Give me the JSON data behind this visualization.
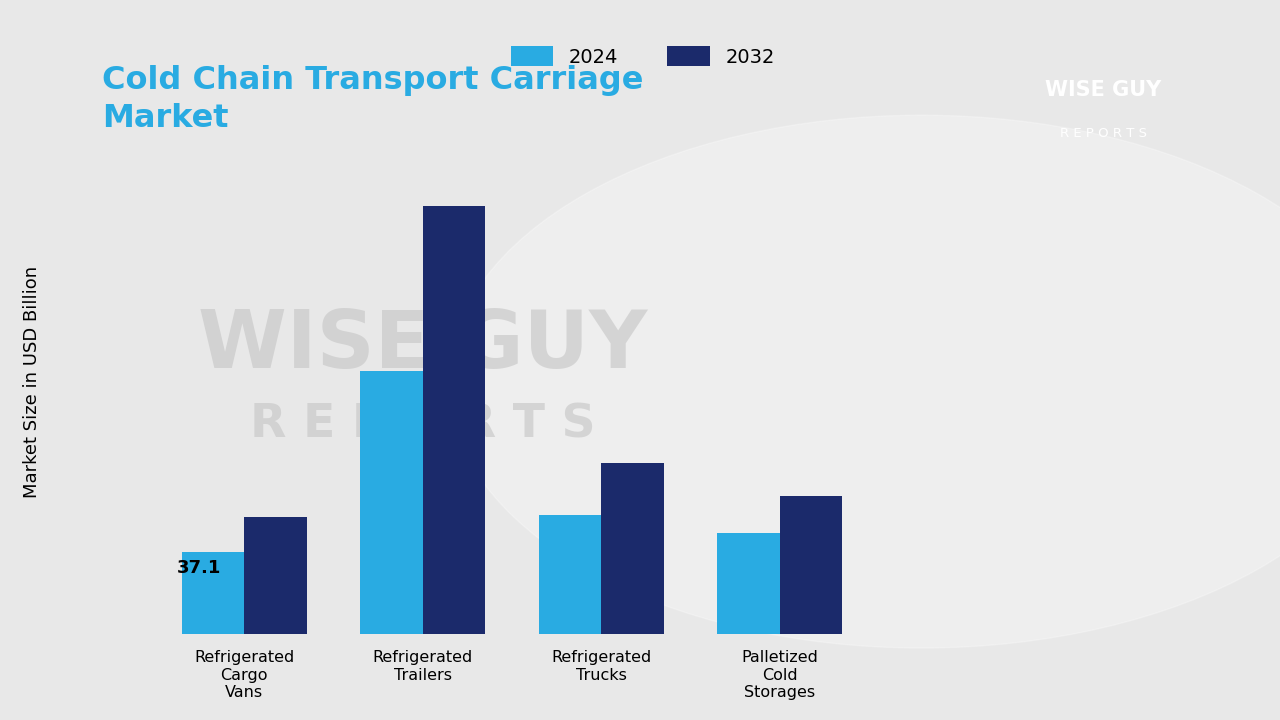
{
  "title": "Cold Chain Transport Carriage\nMarket",
  "ylabel": "Market Size in USD Billion",
  "categories": [
    "Refrigerated\nCargo\nVans",
    "Refrigerated\nTrailers",
    "Refrigerated\nTrucks",
    "Palletized\nCold\nStorages"
  ],
  "years": [
    "2024",
    "2032"
  ],
  "values_2024": [
    37.1,
    120.0,
    54.0,
    46.0
  ],
  "values_2032": [
    53.0,
    195.0,
    78.0,
    63.0
  ],
  "bar_color_2024": "#29ABE2",
  "bar_color_2032": "#1B2A6B",
  "background_color": "#E8E8E8",
  "right_panel_color": "#1B2A6B",
  "title_color": "#29ABE2",
  "annotation_label": "37.1",
  "bar_width": 0.35,
  "ylim": [
    0,
    230
  ]
}
